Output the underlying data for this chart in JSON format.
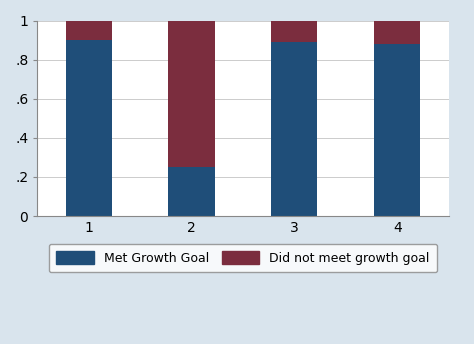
{
  "categories": [
    "1",
    "2",
    "3",
    "4"
  ],
  "met_goal": [
    0.9,
    0.25,
    0.89,
    0.88
  ],
  "did_not_meet": [
    0.1,
    0.75,
    0.11,
    0.12
  ],
  "met_color": "#1F4E79",
  "not_met_color": "#7B2D3E",
  "ylim": [
    0,
    1
  ],
  "yticks": [
    0,
    0.2,
    0.4,
    0.6,
    0.8,
    1.0
  ],
  "yticklabels": [
    "0",
    ".2",
    ".4",
    ".6",
    ".8",
    "1"
  ],
  "xticks": [
    1,
    2,
    3,
    4
  ],
  "xticklabels": [
    "1",
    "2",
    "3",
    "4"
  ],
  "legend_labels": [
    "Met Growth Goal",
    "Did not meet growth goal"
  ],
  "background_color": "#D9E4ED",
  "plot_bg_color": "#FFFFFF",
  "bar_width": 0.45,
  "tick_fontsize": 10,
  "legend_fontsize": 9
}
